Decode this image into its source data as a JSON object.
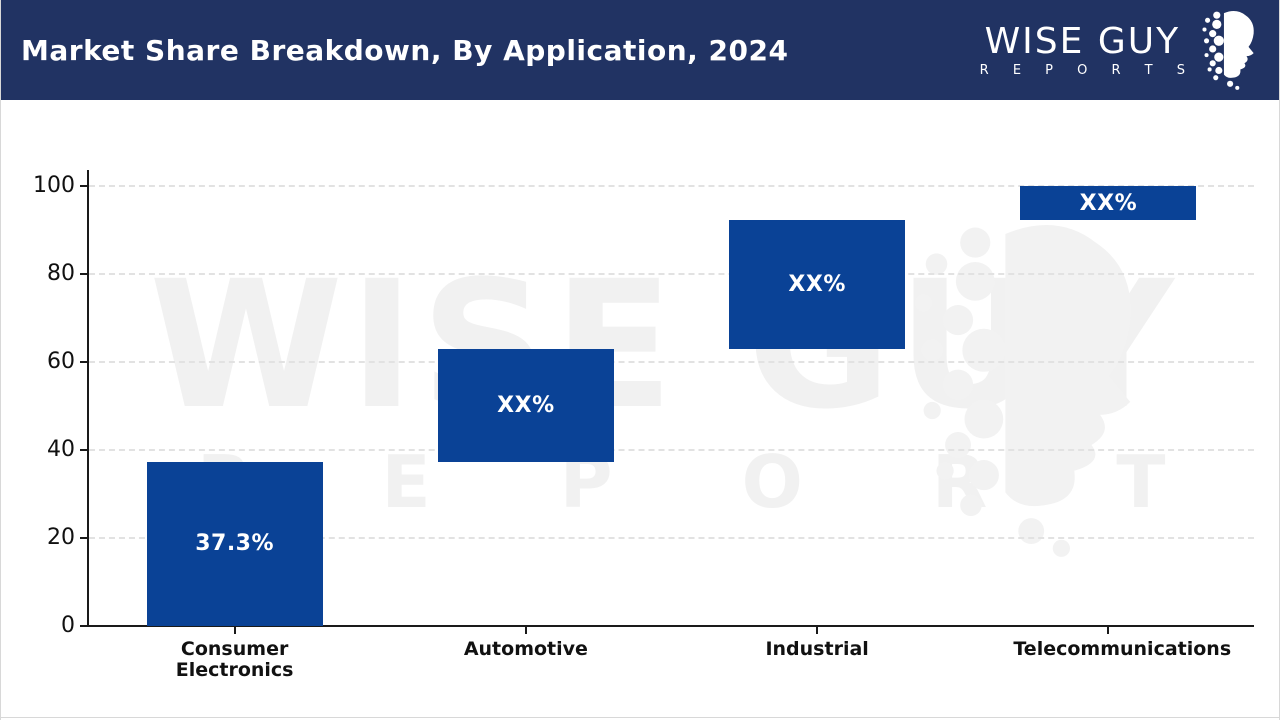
{
  "header": {
    "title": "Market Share Breakdown, By Application, 2024",
    "bg_color": "#213363",
    "logo": {
      "line1": "WISE GUY",
      "line2": "R E P O R T S"
    }
  },
  "watermark": {
    "line1": "WISE GUY",
    "line2": "R E P O R T S"
  },
  "chart_data": {
    "type": "bar",
    "subtype": "waterfall",
    "title": "Market Share Breakdown, By Application, 2024",
    "categories": [
      "Consumer Electronics",
      "Automotive",
      "Industrial",
      "Telecommunications"
    ],
    "segments": [
      {
        "category": "Consumer Electronics",
        "start": 0,
        "end": 37.3,
        "label": "37.3%"
      },
      {
        "category": "Automotive",
        "start": 37.3,
        "end": 62.9,
        "label": "XX%"
      },
      {
        "category": "Industrial",
        "start": 62.9,
        "end": 92.2,
        "label": "XX%"
      },
      {
        "category": "Telecommunications",
        "start": 92.2,
        "end": 100,
        "label": "XX%"
      }
    ],
    "xlabel": "",
    "ylabel": "",
    "ylim": [
      0,
      100
    ],
    "yticks": [
      0,
      20,
      40,
      60,
      80,
      100
    ],
    "grid": "horizontal-dashed",
    "legend": "none",
    "bar_color": "#0a4296",
    "bar_label_color": "#ffffff",
    "axis_color": "#1a1a1a"
  }
}
